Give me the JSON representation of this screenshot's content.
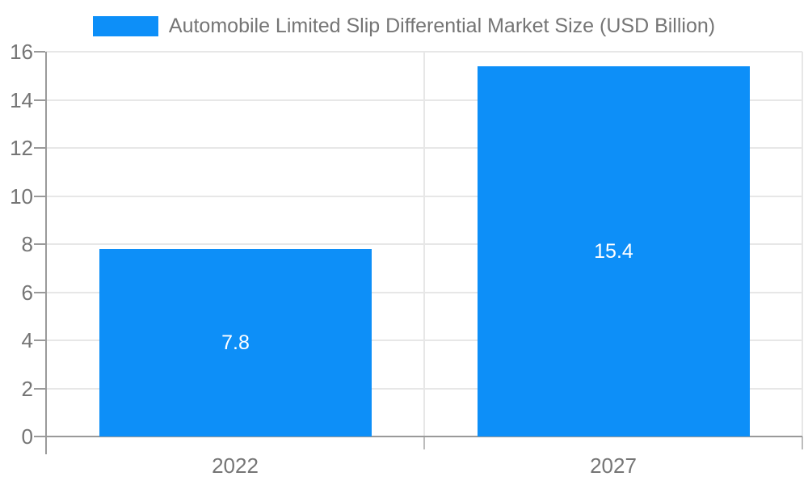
{
  "page": {
    "background": "#ffffff"
  },
  "chart_data": {
    "type": "bar",
    "title": "Automobile Limited Slip Differential Market Size (USD Billion)",
    "categories": [
      "2022",
      "2027"
    ],
    "values": [
      7.8,
      15.4
    ],
    "bar_labels": [
      "7.8",
      "15.4"
    ],
    "xlabel": "",
    "ylabel": "",
    "ylim": [
      0,
      16
    ],
    "y_ticks": [
      0,
      2,
      4,
      6,
      8,
      10,
      12,
      14,
      16
    ],
    "grid": true,
    "legend_position": "top-center",
    "colors": {
      "bar": "#0d8ff8",
      "axis_text": "#757575",
      "bar_value_text": "#ffffff",
      "gridline": "#e7e7e7",
      "axis_line": "#9a9a9a",
      "category_tick": "#bdbdbd"
    }
  }
}
